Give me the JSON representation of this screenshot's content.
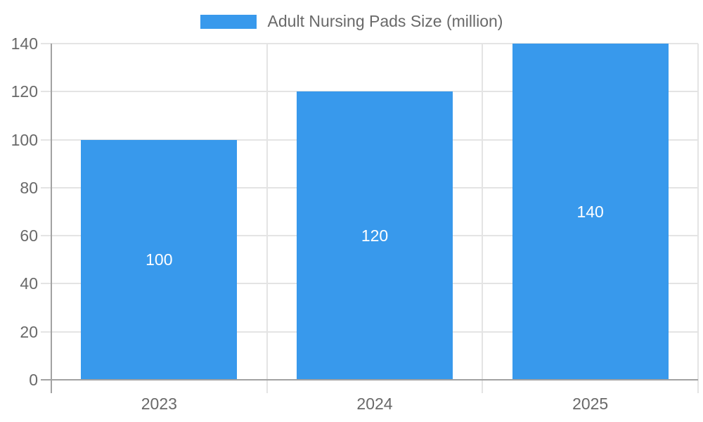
{
  "legend": {
    "label": "Adult Nursing Pads Size (million)"
  },
  "chart_data": {
    "type": "bar",
    "title": "Adult Nursing Pads Size (million)",
    "categories": [
      "2023",
      "2024",
      "2025"
    ],
    "series": [
      {
        "name": "Adult Nursing Pads Size (million)",
        "values": [
          100,
          120,
          140
        ]
      }
    ],
    "data_labels": [
      "100",
      "120",
      "140"
    ],
    "xlabel": "",
    "ylabel": "",
    "ylim": [
      0,
      140
    ],
    "yticks": [
      0,
      20,
      40,
      60,
      80,
      100,
      120,
      140
    ],
    "grid": true,
    "legend_position": "top-center",
    "colors": {
      "bar": "#3899EC",
      "bar_label_text": "#ffffff",
      "axis_text": "#696969",
      "gridline": "#e4e4e4",
      "axis_line": "#a2a2a2",
      "background": "#ffffff"
    }
  }
}
